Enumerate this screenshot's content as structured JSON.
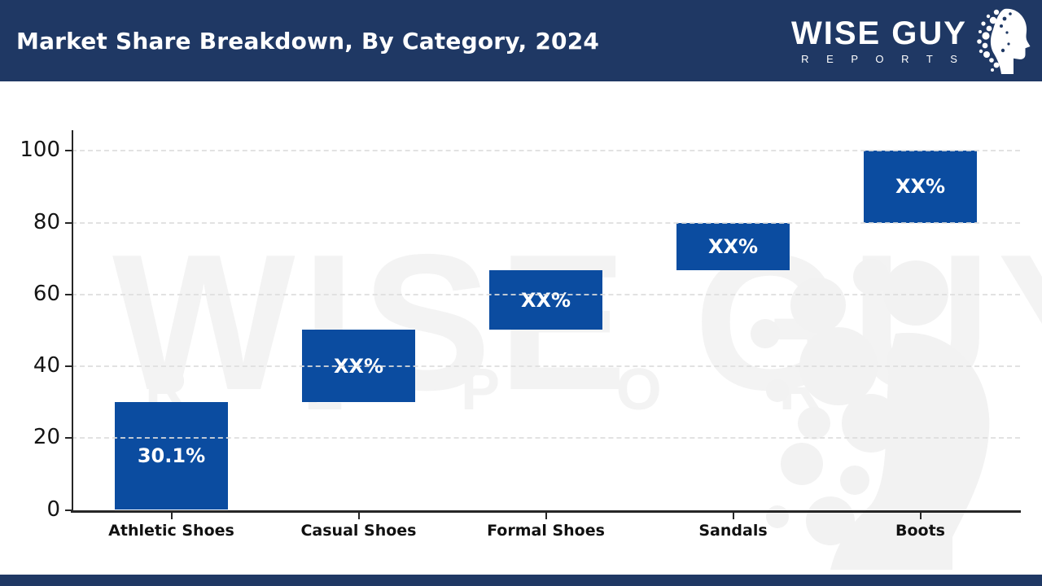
{
  "header": {
    "title": "Market Share Breakdown, By Category, 2024",
    "logo": {
      "line1": "WISE GUY",
      "line2": "R E P O R T S"
    }
  },
  "watermark": {
    "line1": "WISE GUY",
    "line2": "R E P O R T S"
  },
  "colors": {
    "header_bg": "#1f3864",
    "footer_bg": "#1f3864",
    "bar": "#0b4ca0",
    "bar_label": "#ffffff",
    "axis": "#262626",
    "grid": "#dedede",
    "watermark": "#f3f3f3"
  },
  "chart_data": {
    "type": "bar",
    "subtype": "waterfall",
    "title": "Market Share Breakdown, By Category, 2024",
    "categories": [
      "Athletic Shoes",
      "Casual Shoes",
      "Formal Shoes",
      "Sandals",
      "Boots"
    ],
    "bars": [
      {
        "category": "Athletic Shoes",
        "start": 0,
        "end": 30.1,
        "value": 30.1,
        "label": "30.1%"
      },
      {
        "category": "Casual Shoes",
        "start": 30.1,
        "end": 50.1,
        "value": 20.0,
        "label": "XX%"
      },
      {
        "category": "Formal Shoes",
        "start": 50.1,
        "end": 66.8,
        "value": 16.7,
        "label": "XX%"
      },
      {
        "category": "Sandals",
        "start": 66.8,
        "end": 80.0,
        "value": 13.2,
        "label": "XX%"
      },
      {
        "category": "Boots",
        "start": 80.0,
        "end": 100.0,
        "value": 20.0,
        "label": "XX%"
      }
    ],
    "y_ticks": [
      0,
      20,
      40,
      60,
      80,
      100
    ],
    "ylim": [
      0,
      100
    ],
    "xlabel": "",
    "ylabel": "",
    "grid": "horizontal-dashed",
    "legend": "none"
  }
}
